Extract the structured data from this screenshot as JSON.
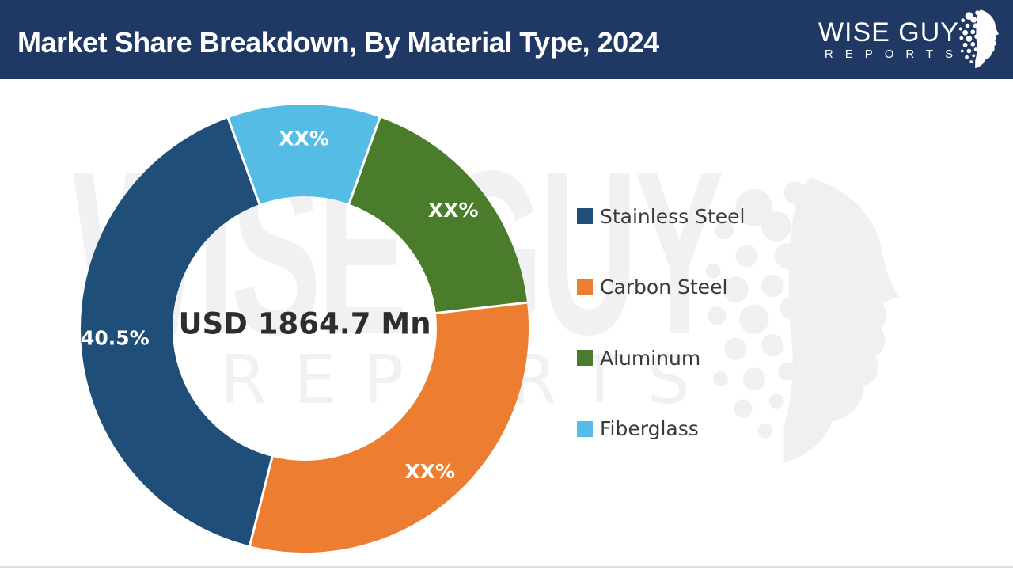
{
  "header": {
    "title": "Market Share Breakdown, By Material Type, 2024",
    "logo_line1": "WISE GUY",
    "logo_line2": "REPORTS"
  },
  "watermark": {
    "line1": "WISE GUY",
    "line2": "REPORTS"
  },
  "colors": {
    "header_bg": "#1F3864",
    "stainless_steel": "#1F4E79",
    "carbon_steel": "#ED7D31",
    "aluminum": "#4A7C2B",
    "fiberglass": "#55BCE6",
    "watermark": "#f1f1f3",
    "slice_label_text": "#ffffff",
    "center_text": "#2d2d2d",
    "legend_text": "#3a3a3a"
  },
  "chart_data": {
    "type": "pie",
    "subtype": "donut",
    "title": "Market Share Breakdown, By Material Type, 2024",
    "center_label": "USD 1864.7 Mn",
    "start_angle_deg": 110,
    "direction": "counterclockwise",
    "legend_position": "right",
    "slices": [
      {
        "name": "Stainless Steel",
        "value_pct": 40.5,
        "label": "40.5%",
        "color": "#1F4E79"
      },
      {
        "name": "Carbon Steel",
        "value_pct": 30.8,
        "label": "XX%",
        "color": "#ED7D31"
      },
      {
        "name": "Aluminum",
        "value_pct": 17.7,
        "label": "XX%",
        "color": "#4A7C2B"
      },
      {
        "name": "Fiberglass",
        "value_pct": 11.0,
        "label": "XX%",
        "color": "#55BCE6"
      }
    ]
  }
}
